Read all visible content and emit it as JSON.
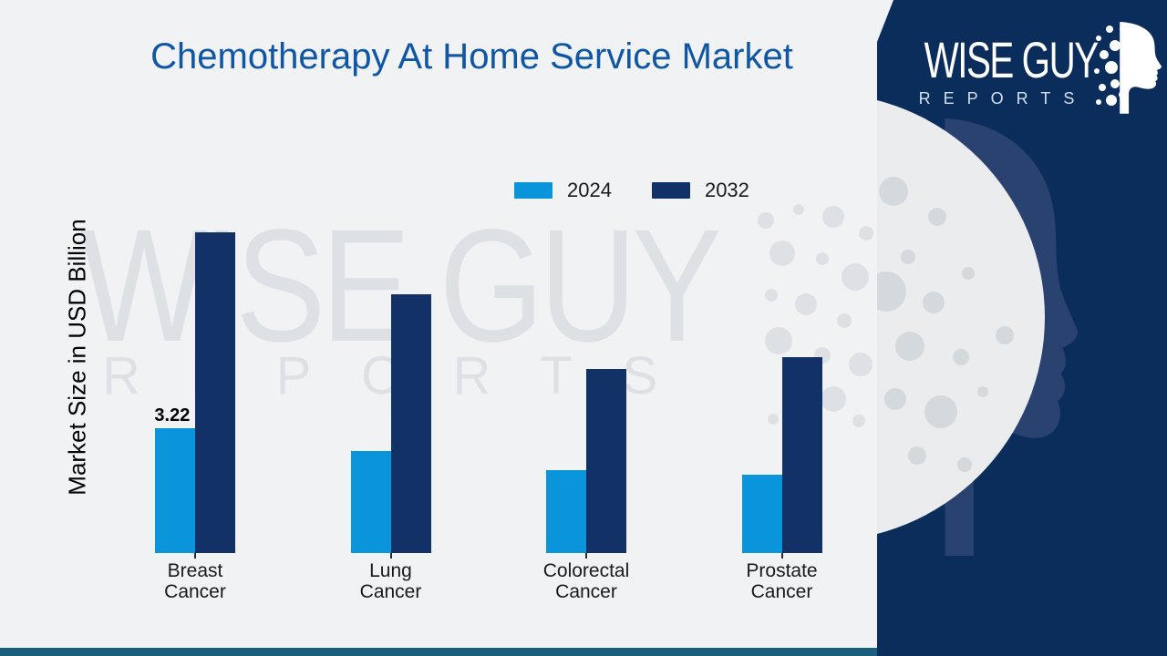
{
  "title": "Chemotherapy At Home Service Market",
  "logo": {
    "line1": "WISE GUY",
    "line2": "REPORTS"
  },
  "watermark": {
    "line1": "WISE GUY",
    "line2": "REPORTS"
  },
  "colors": {
    "background": "#f1f2f3",
    "panel_navy": "#0b2d5c",
    "bottom_bar_teal": "#1a5f7e",
    "title_blue": "#0f56a5",
    "series_2024": "#0a94da",
    "series_2032": "#123167",
    "watermark_gray": "#dde1e6",
    "face_silhouette_navy": "#2a4270",
    "watermark_circle_gray": "#eaecee"
  },
  "chart_data": {
    "type": "bar",
    "title": "Chemotherapy At Home Service Market",
    "categories": [
      "Breast Cancer",
      "Lung Cancer",
      "Colorectal Cancer",
      "Prostate Cancer"
    ],
    "series": [
      {
        "name": "2024",
        "color": "#0a94da",
        "values": [
          3.22,
          2.63,
          2.14,
          2.02
        ]
      },
      {
        "name": "2032",
        "color": "#123167",
        "values": [
          8.27,
          6.68,
          4.75,
          5.05
        ]
      }
    ],
    "xlabel": "",
    "ylabel": "Market Size in USD Billion",
    "ylim": [
      0,
      8.8
    ],
    "grid": false,
    "legend_position": "top-center",
    "bar_labels": [
      {
        "series": "2024",
        "category": "Breast Cancer",
        "text": "3.22"
      }
    ]
  }
}
